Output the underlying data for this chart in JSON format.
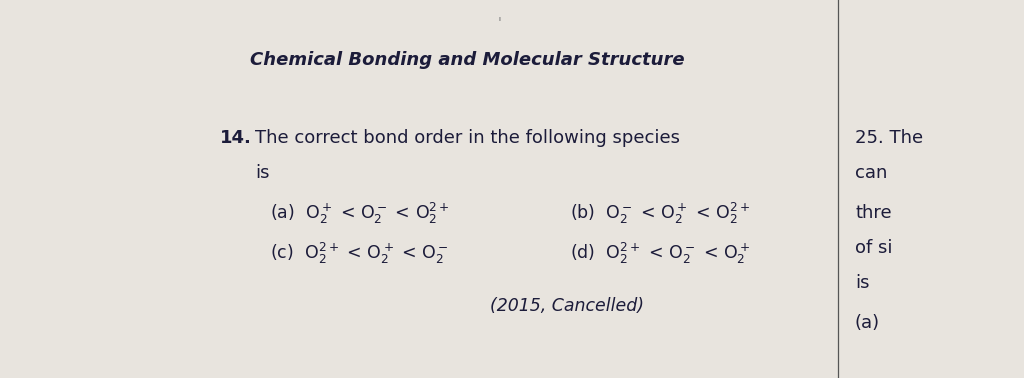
{
  "bg_color": "#d4cfc8",
  "content_bg": "#e8e4de",
  "title": "Chemical Bonding and Molecular Structure",
  "title_fontsize": 13,
  "title_fontstyle": "italic",
  "title_fontweight": "bold",
  "q_number": "14.",
  "q_text": "The correct bond order in the following species",
  "q_text2": "is",
  "opt_a": "(a)  $\\mathrm{O_2^+}$ < $\\mathrm{O_2^-}$ < $\\mathrm{O_2^{2+}}$",
  "opt_b": "(b)  $\\mathrm{O_2^-}$ < $\\mathrm{O_2^+}$ < $\\mathrm{O_2^{2+}}$",
  "opt_c": "(c)  $\\mathrm{O_2^{2+}}$ < $\\mathrm{O_2^+}$ < $\\mathrm{O_2^-}$",
  "opt_d": "(d)  $\\mathrm{O_2^{2+}}$ < $\\mathrm{O_2^-}$ < $\\mathrm{O_2^+}$",
  "cancelled": "(2015, Cancelled)",
  "right_col_texts": [
    "25. The",
    "can",
    "thre",
    "of si",
    "is",
    "(a)"
  ],
  "text_color": "#1c1c3a",
  "font_family": "DejaVu Sans"
}
